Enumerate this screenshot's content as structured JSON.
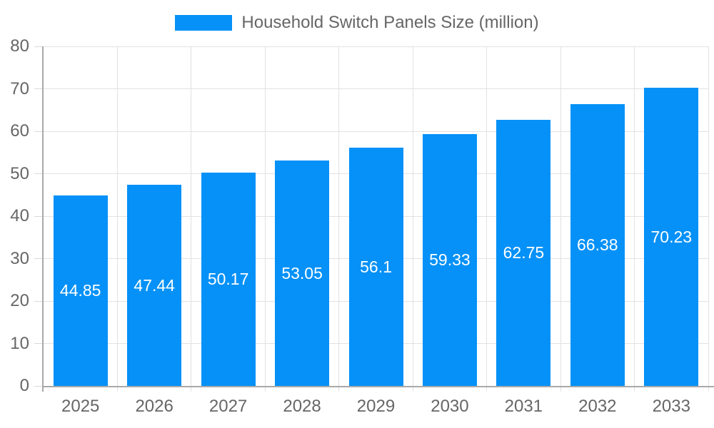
{
  "chart_data": {
    "type": "bar",
    "title": "Household Switch Panels Size (million)",
    "categories": [
      "2025",
      "2026",
      "2027",
      "2028",
      "2029",
      "2030",
      "2031",
      "2032",
      "2033"
    ],
    "values": [
      44.85,
      47.44,
      50.17,
      53.05,
      56.1,
      59.33,
      62.75,
      66.38,
      70.23
    ],
    "value_labels": [
      "44.85",
      "47.44",
      "50.17",
      "53.05",
      "56.1",
      "59.33",
      "62.75",
      "66.38",
      "70.23"
    ],
    "xlabel": "",
    "ylabel": "",
    "ylim": [
      0,
      80
    ],
    "yticks": [
      0,
      10,
      20,
      30,
      40,
      50,
      60,
      70,
      80
    ],
    "grid": "on",
    "legend_position": "top-center",
    "bar_color": "#0591f7",
    "value_label_color": "#ffffff",
    "axis_text_color": "#666666",
    "legend_text_color": "#666666",
    "grid_color": "#e2e2e2",
    "tick_color": "#d9d9d9",
    "axis_line_color": "#a9a9a9"
  }
}
